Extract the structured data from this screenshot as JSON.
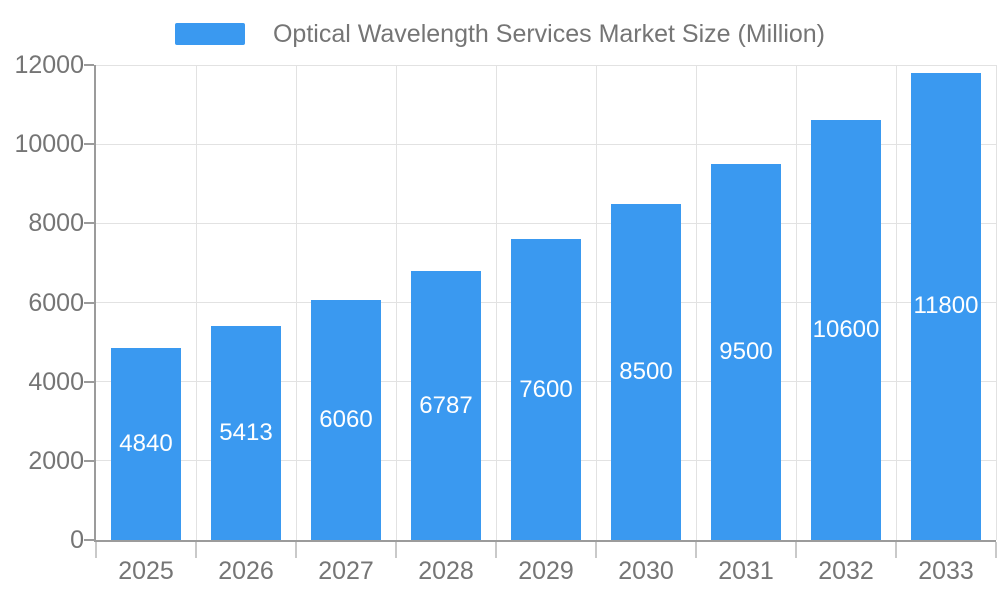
{
  "chart_data": {
    "type": "bar",
    "title": "Optical Wavelength Services Market Size (Million)",
    "legend_entries": [
      "Optical Wavelength Services Market Size (Million)"
    ],
    "categories": [
      "2025",
      "2026",
      "2027",
      "2028",
      "2029",
      "2030",
      "2031",
      "2032",
      "2033"
    ],
    "series": [
      {
        "name": "Optical Wavelength Services Market Size (Million)",
        "values": [
          4840,
          5413,
          6060,
          6787,
          7600,
          8500,
          9500,
          10600,
          11800
        ]
      }
    ],
    "data_labels": [
      "4840",
      "5413",
      "6060",
      "6787",
      "7600",
      "8500",
      "9500",
      "10600",
      "11800"
    ],
    "xlabel": "",
    "ylabel": "",
    "ylim": [
      0,
      12000
    ],
    "ytick_step": 2000,
    "ytick_labels": [
      "0",
      "2000",
      "4000",
      "6000",
      "8000",
      "10000",
      "12000"
    ],
    "grid": true,
    "legend_position": "top-center",
    "data_label_position": "inside-center",
    "colors": {
      "bar": "#3a99f0",
      "bar_label": "#ffffff",
      "gridline": "#e2e2e2",
      "axis_line": "#9b9b9b",
      "x_tick": "#c9c9c9",
      "axis_text": "#757575",
      "background": "#ffffff"
    }
  }
}
